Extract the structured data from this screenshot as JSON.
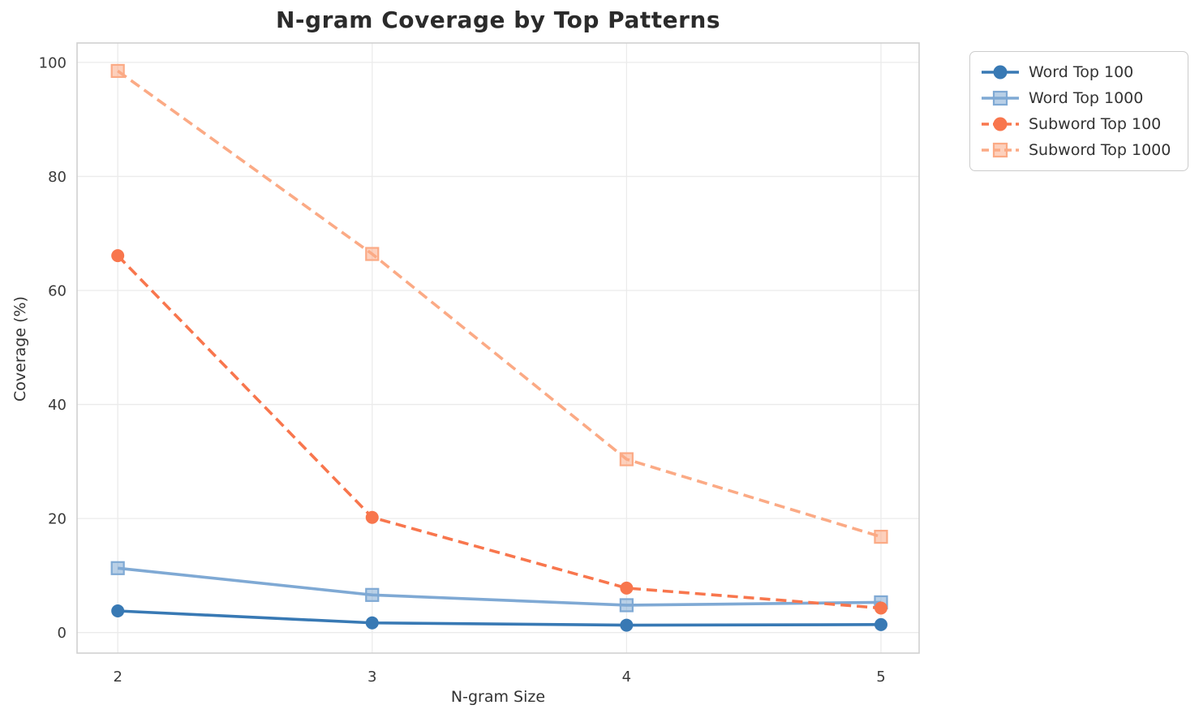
{
  "chart_data": {
    "type": "line",
    "title": "N-gram Coverage by Top Patterns",
    "xlabel": "N-gram Size",
    "ylabel": "Coverage (%)",
    "x": [
      2,
      3,
      4,
      5
    ],
    "xticks": [
      2,
      3,
      4,
      5
    ],
    "yticks": [
      0,
      20,
      40,
      60,
      80,
      100
    ],
    "xlim": [
      1.84,
      5.15
    ],
    "ylim": [
      -3.6,
      103.4
    ],
    "grid": true,
    "legend": {
      "position": "outside-upper-right",
      "entries": [
        "Word Top 100",
        "Word Top 1000",
        "Subword Top 100",
        "Subword Top 1000"
      ]
    },
    "series": [
      {
        "id": "word-top-100",
        "name": "Word Top 100",
        "color": "#3879b4",
        "marker": "circle",
        "linestyle": "solid",
        "values": [
          3.8,
          1.7,
          1.3,
          1.4
        ]
      },
      {
        "id": "word-top-1000",
        "name": "Word Top 1000",
        "color": "#7fa9d4",
        "marker": "square",
        "linestyle": "solid",
        "values": [
          11.3,
          6.6,
          4.8,
          5.3
        ]
      },
      {
        "id": "subword-top-100",
        "name": "Subword Top 100",
        "color": "#f8764d",
        "marker": "circle",
        "linestyle": "dashed",
        "values": [
          66.1,
          20.2,
          7.8,
          4.3
        ]
      },
      {
        "id": "subword-top-1000",
        "name": "Subword Top 1000",
        "color": "#fbaa85",
        "marker": "square",
        "linestyle": "dashed",
        "values": [
          98.5,
          66.4,
          30.4,
          16.8
        ]
      }
    ],
    "style": {
      "background": "#ffffff",
      "grid_color": "#ebebeb",
      "spine_color": "#d0d0d0",
      "title_color": "#2b2b2b",
      "tick_color": "#3a3a3a"
    }
  }
}
